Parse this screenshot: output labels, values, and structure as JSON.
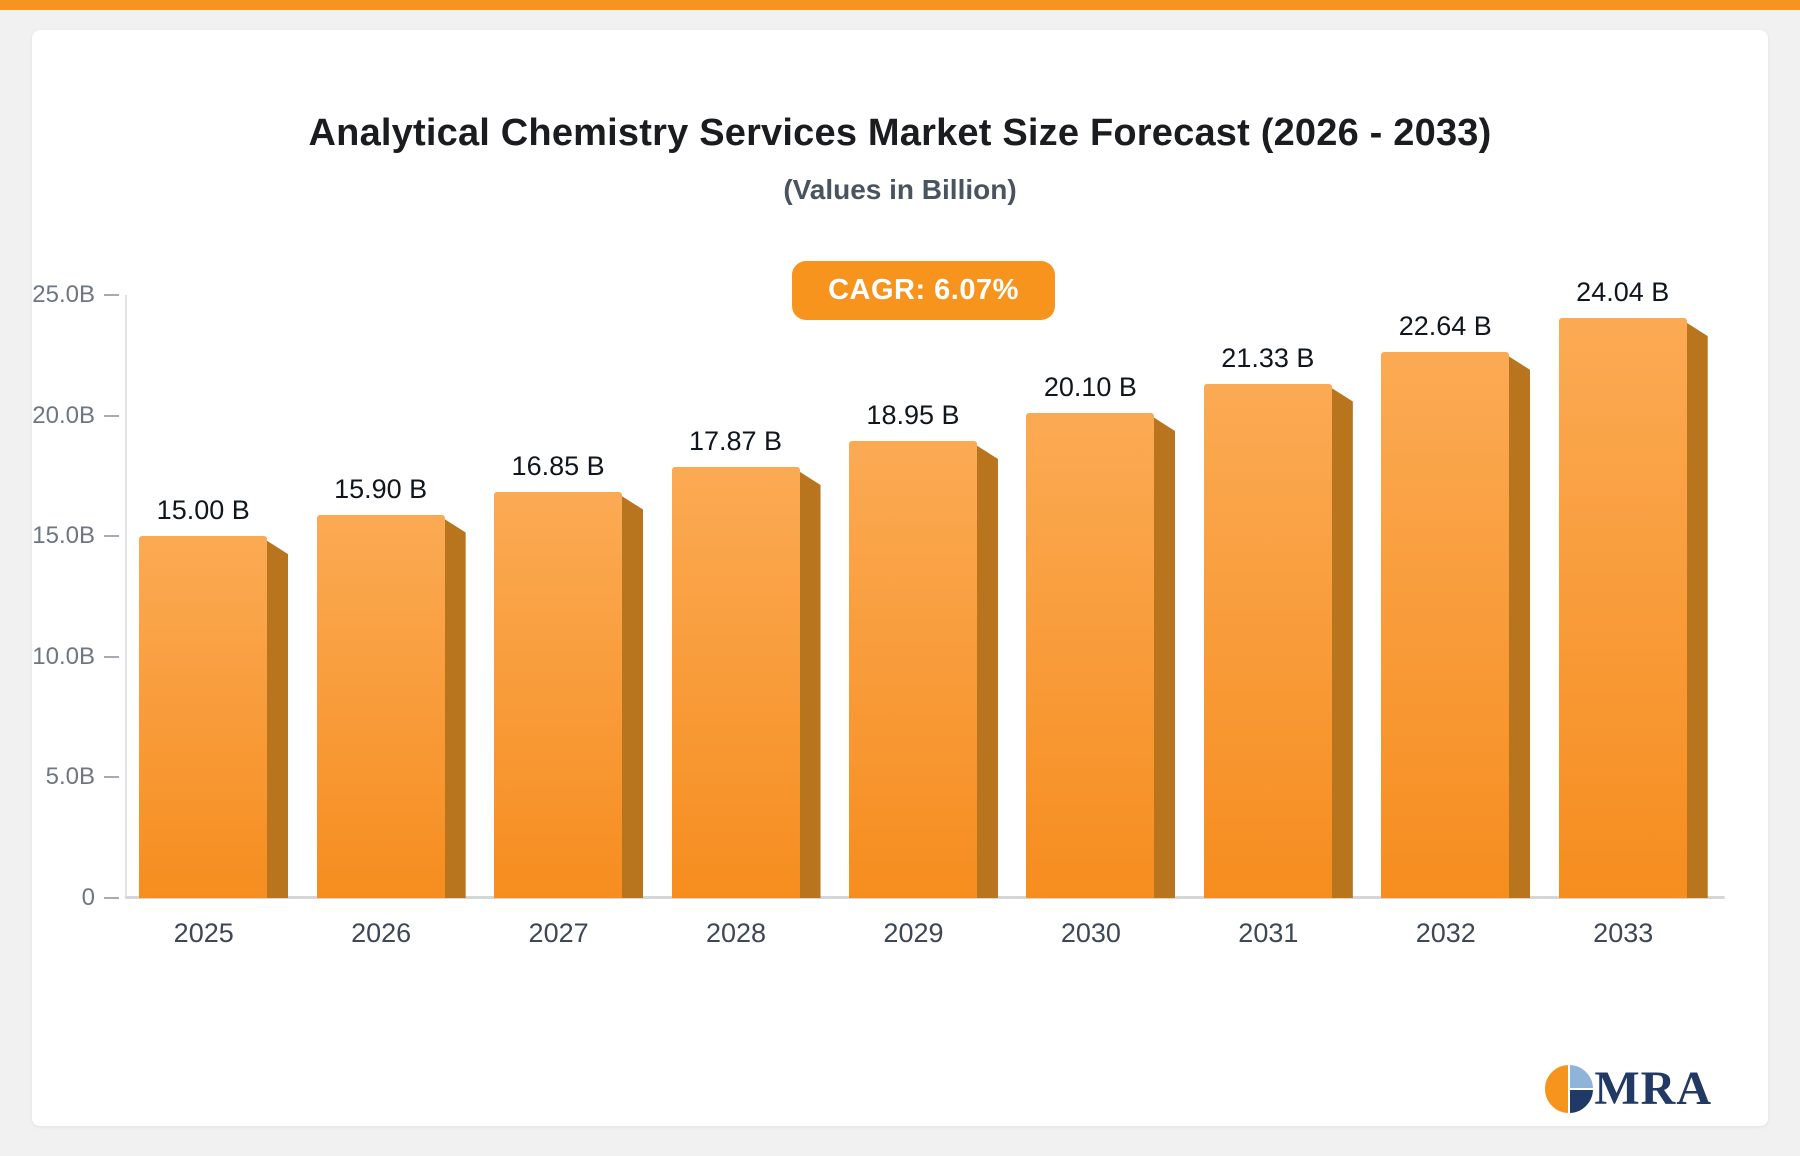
{
  "page": {
    "accent_color": "#F7941E",
    "background_color": "#F1F1F2",
    "card_color": "#FFFFFF"
  },
  "header": {
    "title": "Analytical Chemistry Services Market Size Forecast (2026 - 2033)",
    "subtitle": "(Values in Billion)"
  },
  "badge": {
    "label": "CAGR: 6.07%",
    "color": "#F7941E",
    "text_color": "#FFFFFF"
  },
  "chart_data": {
    "type": "bar",
    "title": "Analytical Chemistry Services Market Size Forecast (2026 - 2033)",
    "subtitle": "(Values in Billion)",
    "annotation": "CAGR: 6.07%",
    "categories": [
      "2025",
      "2026",
      "2027",
      "2028",
      "2029",
      "2030",
      "2031",
      "2032",
      "2033"
    ],
    "values": [
      15.0,
      15.9,
      16.85,
      17.87,
      18.95,
      20.1,
      21.33,
      22.64,
      24.04
    ],
    "value_labels": [
      "15.00 B",
      "15.90 B",
      "16.85 B",
      "17.87 B",
      "18.95 B",
      "20.10 B",
      "21.33 B",
      "22.64 B",
      "24.04 B"
    ],
    "unit": "Billion",
    "xlabel": "",
    "ylabel": "",
    "ylim": [
      0,
      25
    ],
    "y_ticks": [
      "25.0B",
      "20.0B",
      "15.0B",
      "10.0B",
      "5.0B",
      "0"
    ],
    "y_tick_values": [
      25,
      20,
      15,
      10,
      5,
      0
    ],
    "grid": false,
    "legend": false,
    "bar_color_top": "#FBAA54",
    "bar_color_bottom": "#F68D1F",
    "bar_side_color": "#B9741E"
  },
  "logo": {
    "text": "MRA",
    "text_color": "#223A63",
    "pie_colors": [
      "#F7941E",
      "#8FB4D9",
      "#1F3A66"
    ]
  }
}
